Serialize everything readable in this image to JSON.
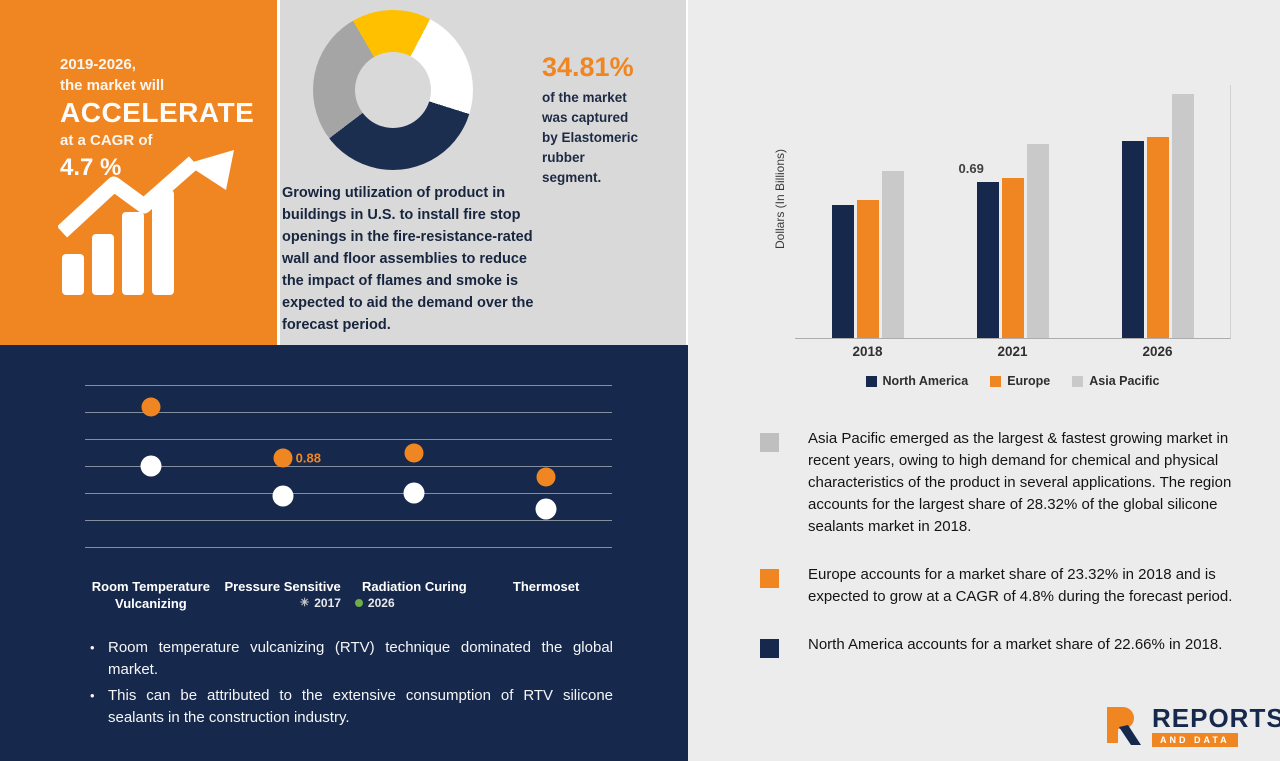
{
  "colors": {
    "orange": "#F08621",
    "navy": "#16294D",
    "panel_gray": "#D9D9D9",
    "right_bg": "#ECECEC",
    "donut_yellow": "#FFC000",
    "donut_gray": "#A5A5A5",
    "bar_gray": "#C9C9C9",
    "legend_2017_marker": "#C9C9C9",
    "legend_2026_marker": "#70AD47"
  },
  "cagr": {
    "period": "2019-2026,",
    "line2": "the market will",
    "accelerate": "ACCELERATE",
    "line4": "at a CAGR of",
    "rate": "4.7 %"
  },
  "summary": {
    "stat": "34.81%",
    "stat_desc": "of the market was captured by Elastomeric rubber segment.",
    "paragraph": "Growing utilization of product in buildings in U.S. to install fire stop openings in the fire-resistance-rated wall and floor assemblies to reduce the impact of flames and smoke is expected to aid the demand over the forecast period."
  },
  "technique": {
    "bullets": [
      "Room temperature vulcanizing (RTV) technique dominated the global market.",
      "This can be attributed to the extensive consumption of RTV silicone sealants in the construction industry."
    ],
    "legend": [
      {
        "label": "2017"
      },
      {
        "label": "2026"
      }
    ]
  },
  "region": {
    "bullets": [
      {
        "color": "#BFBFBF",
        "text": "Asia Pacific emerged as the largest & fastest growing market in recent years, owing to high demand for chemical and physical characteristics of the product in several applications. The region accounts for the largest share of 28.32% of the global silicone sealants market in 2018."
      },
      {
        "color": "#F08621",
        "text": "Europe accounts for a market share of 23.32% in 2018 and  is expected to grow at a CAGR of 4.8% during the forecast period."
      },
      {
        "color": "#16294D",
        "text": "North America accounts for a market share of 22.66% in 2018."
      }
    ]
  },
  "logo": {
    "name": "REPORTS",
    "tagline": "AND DATA"
  },
  "chart_data": [
    {
      "type": "pie",
      "name": "segment-share-donut",
      "title": "Share captured by Elastomeric rubber segment",
      "slices": [
        {
          "label": "unlabeled",
          "value": 16.0,
          "color": "#FFC000"
        },
        {
          "label": "unlabeled",
          "value": 22.19,
          "color": "#FFFFFF"
        },
        {
          "label": "Elastomeric rubber",
          "value": 34.81,
          "color": "#1B2E4F"
        },
        {
          "label": "unlabeled",
          "value": 27.0,
          "color": "#A5A5A5"
        }
      ]
    },
    {
      "type": "scatter",
      "name": "technique-dot-plot",
      "categories": [
        "Room Temperature Vulcanizing",
        "Pressure Sensitive",
        "Radiation Curing",
        "Thermoset"
      ],
      "ylim": [
        0.55,
        1.15
      ],
      "series": [
        {
          "name": "2026",
          "color": "#F08621",
          "size": 19,
          "values": [
            1.07,
            0.88,
            0.9,
            0.81
          ]
        },
        {
          "name": "2017",
          "color": "#FFFFFF",
          "size": 21,
          "values": [
            0.85,
            0.74,
            0.75,
            0.69
          ]
        }
      ],
      "point_label": {
        "series": "2026",
        "category_index": 1,
        "value": 0.88,
        "text": "0.88"
      }
    },
    {
      "type": "bar",
      "name": "regional-bar-chart",
      "ylabel": "Dollars (In Billions)",
      "categories": [
        "2018",
        "2021",
        "2026"
      ],
      "series": [
        {
          "name": "North America",
          "color": "#16294D",
          "values": [
            0.59,
            0.69,
            0.87
          ]
        },
        {
          "name": "Europe",
          "color": "#F08621",
          "values": [
            0.61,
            0.71,
            0.89
          ]
        },
        {
          "name": "Asia Pacific",
          "color": "#C9C9C9",
          "values": [
            0.74,
            0.86,
            1.08
          ]
        }
      ],
      "point_label": {
        "series_index": 0,
        "category_index": 1,
        "text": "0.69"
      },
      "legend_position": "bottom"
    }
  ]
}
